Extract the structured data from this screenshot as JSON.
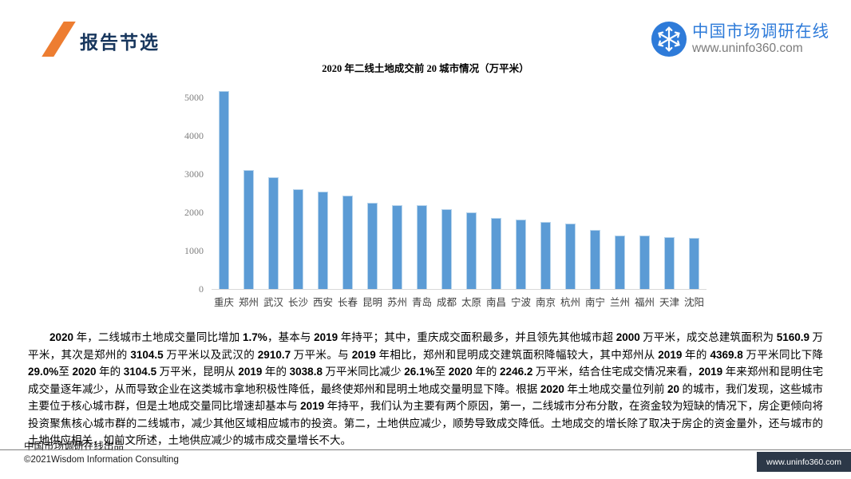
{
  "header": {
    "title": "报告节选",
    "brand": {
      "name": "中国市场调研在线",
      "url": "www.uninfo360.com"
    }
  },
  "icons": {
    "slash_logo": "orange-slash",
    "brand_logo": "snowflake-arrows-in-blue-circle"
  },
  "colors": {
    "accent_orange": "#ED7D31",
    "title_navy": "#17365D",
    "brand_blue": "#2E7BD9",
    "bar_blue": "#5B9BD5",
    "badge_navy": "#2C3848"
  },
  "chart_data": {
    "type": "bar",
    "title": "2020 年二线土地成交前 20 城市情况（万平米）",
    "categories": [
      "重庆",
      "郑州",
      "武汉",
      "长沙",
      "西安",
      "长春",
      "昆明",
      "苏州",
      "青岛",
      "成都",
      "太原",
      "南昌",
      "宁波",
      "南京",
      "杭州",
      "南宁",
      "兰州",
      "福州",
      "天津",
      "沈阳"
    ],
    "values": [
      5160.9,
      3104.5,
      2910.7,
      2600,
      2550,
      2430,
      2246.2,
      2190,
      2180,
      2090,
      1990,
      1860,
      1820,
      1740,
      1700,
      1540,
      1400,
      1390,
      1360,
      1330
    ],
    "xlabel": "",
    "ylabel": "",
    "ylim": [
      0,
      5000
    ],
    "yticks": [
      0,
      1000,
      2000,
      3000,
      4000,
      5000
    ],
    "grid": false,
    "legend": null,
    "bar_color": "#5B9BD5"
  },
  "body": {
    "paragraph_segments": [
      {
        "t": "2020",
        "b": true
      },
      {
        "t": " 年，二线城市土地成交量同比增加 ",
        "b": false
      },
      {
        "t": "1.7%",
        "b": true
      },
      {
        "t": "，基本与 ",
        "b": false
      },
      {
        "t": "2019",
        "b": true
      },
      {
        "t": " 年持平；其中，重庆成交面积最多，并且领先其他城市超 ",
        "b": false
      },
      {
        "t": "2000",
        "b": true
      },
      {
        "t": " 万平米，成交总建筑面积为 ",
        "b": false
      },
      {
        "t": "5160.9",
        "b": true
      },
      {
        "t": " 万平米，其次是郑州的 ",
        "b": false
      },
      {
        "t": "3104.5",
        "b": true
      },
      {
        "t": " 万平米以及武汉的 ",
        "b": false
      },
      {
        "t": "2910.7",
        "b": true
      },
      {
        "t": " 万平米。与 ",
        "b": false
      },
      {
        "t": "2019",
        "b": true
      },
      {
        "t": " 年相比，郑州和昆明成交建筑面积降幅较大，其中郑州从 ",
        "b": false
      },
      {
        "t": "2019",
        "b": true
      },
      {
        "t": " 年的 ",
        "b": false
      },
      {
        "t": "4369.8",
        "b": true
      },
      {
        "t": " 万平米同比下降 ",
        "b": false
      },
      {
        "t": "29.0%",
        "b": true
      },
      {
        "t": "至 ",
        "b": false
      },
      {
        "t": "2020",
        "b": true
      },
      {
        "t": " 年的 ",
        "b": false
      },
      {
        "t": "3104.5",
        "b": true
      },
      {
        "t": " 万平米，昆明从 ",
        "b": false
      },
      {
        "t": "2019",
        "b": true
      },
      {
        "t": " 年的 ",
        "b": false
      },
      {
        "t": "3038.8",
        "b": true
      },
      {
        "t": " 万平米同比减少 ",
        "b": false
      },
      {
        "t": "26.1%",
        "b": true
      },
      {
        "t": "至 ",
        "b": false
      },
      {
        "t": "2020",
        "b": true
      },
      {
        "t": " 年的 ",
        "b": false
      },
      {
        "t": "2246.2",
        "b": true
      },
      {
        "t": " 万平米，结合住宅成交情况来看，",
        "b": false
      },
      {
        "t": "2019",
        "b": true
      },
      {
        "t": " 年来郑州和昆明住宅成交量逐年减少，从而导致企业在这类城市拿地积极性降低，最终使郑州和昆明土地成交量明显下降。根据 ",
        "b": false
      },
      {
        "t": "2020",
        "b": true
      },
      {
        "t": " 年土地成交量位列前 ",
        "b": false
      },
      {
        "t": "20",
        "b": true
      },
      {
        "t": " 的城市，我们发现，这些城市主要位于核心城市群，但是土地成交量同比增速却基本与 ",
        "b": false
      },
      {
        "t": "2019",
        "b": true
      },
      {
        "t": " 年持平，我们认为主要有两个原因，第一，二线城市分布分散，在资金较为短缺的情况下，房企更倾向将投资聚焦核心城市群的二线城市，减少其他区域相应城市的投资。第二，土地供应减少，顺势导致成交降低。土地成交的增长除了取决于房企的资金量外，还与城市的土地供应相关，如前文所述，土地供应减少的城市成交量增长不大。",
        "b": false
      }
    ]
  },
  "footer": {
    "produced_by": "中国市场调研在线出品",
    "copyright": "©2021Wisdom Information Consulting",
    "url_badge": "www.uninfo360.com"
  }
}
